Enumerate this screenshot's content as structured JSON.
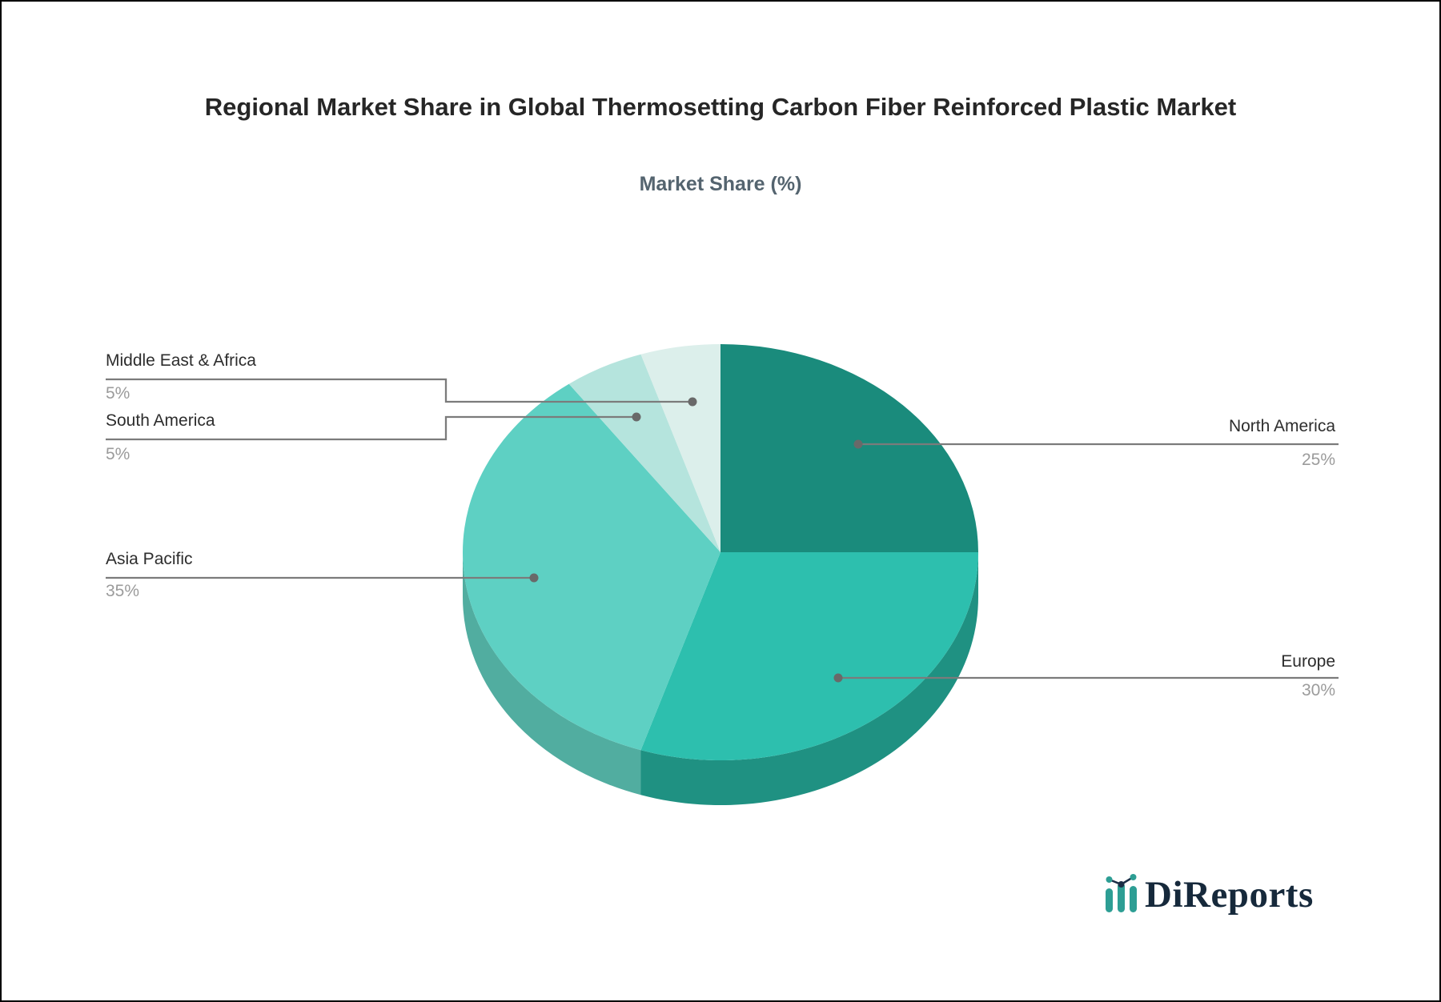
{
  "title": "Regional Market Share in Global Thermosetting Carbon Fiber Reinforced Plastic Market",
  "subtitle": "Market Share (%)",
  "logo": {
    "text": "DiReports"
  },
  "chart_data": {
    "type": "pie",
    "title": "Regional Market Share in Global Thermosetting Carbon Fiber Reinforced Plastic Market",
    "subtitle": "Market Share (%)",
    "unit": "%",
    "start_angle_deg_clockwise_from_top": 0,
    "categories": [
      "North America",
      "Europe",
      "Asia Pacific",
      "South America",
      "Middle East & Africa"
    ],
    "values": [
      25,
      30,
      35,
      5,
      5
    ],
    "value_labels": [
      "25%",
      "30%",
      "35%",
      "5%",
      "5%"
    ],
    "slice_colors": [
      "#1a8b7c",
      "#2dbfae",
      "#5ed0c3",
      "#b5e4dd",
      "#dcefeb"
    ],
    "slice_side_colors": [
      "#17796d",
      "#1f9182",
      "#51ada0",
      "#8fc9c1",
      "#b9d8d3"
    ],
    "effect": "3d-depth",
    "legend_position": "none",
    "label_style": "callout-leader-lines",
    "leader_line_color": "#7b7b7b",
    "leader_dot_color": "#696969",
    "label_text_color": "#2d2d2d",
    "value_text_color": "#9b9b9b",
    "title_color": "#262626",
    "subtitle_color": "#54646f"
  }
}
